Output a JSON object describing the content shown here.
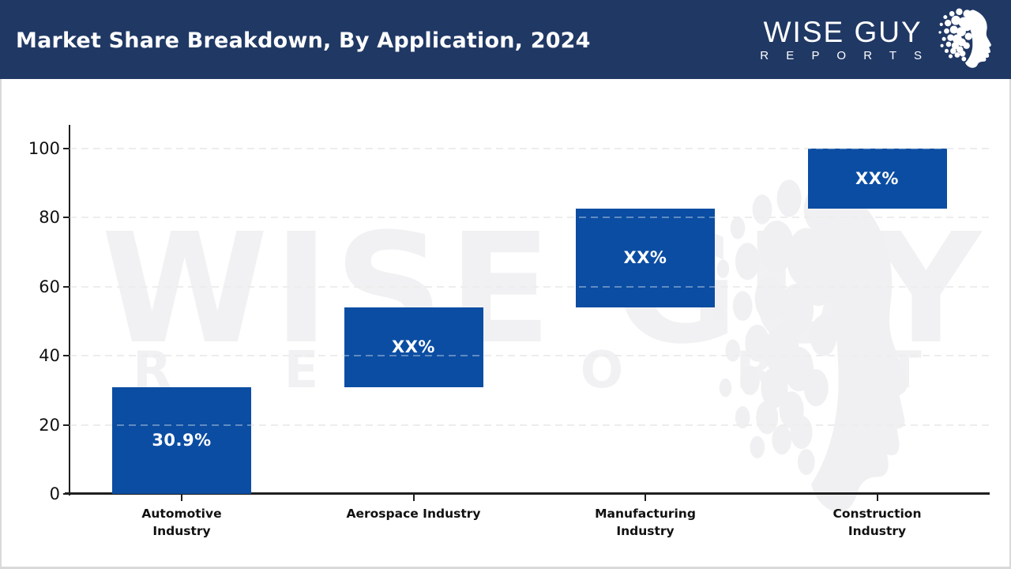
{
  "header": {
    "title": "Market Share Breakdown, By Application, 2024",
    "bg_color": "#203864",
    "logo": {
      "line1": "WISE GUY",
      "line2": "R E P O R T S"
    }
  },
  "watermark": {
    "line1": "WISE GUY",
    "line2": "R E P O R T S"
  },
  "chart_data": {
    "type": "bar",
    "subtype": "waterfall",
    "title": "Market Share Breakdown, By Application, 2024",
    "categories": [
      "Automotive Industry",
      "Aerospace Industry",
      "Manufacturing Industry",
      "Construction Industry"
    ],
    "segments": [
      {
        "category": "Automotive Industry",
        "label_lines": [
          "Automotive",
          "Industry"
        ],
        "start": 0,
        "end": 30.9,
        "value": 30.9,
        "bar_label": "30.9%"
      },
      {
        "category": "Aerospace Industry",
        "label_lines": [
          "Aerospace Industry"
        ],
        "start": 30.9,
        "end": 54.0,
        "value": 23.1,
        "bar_label": "XX%"
      },
      {
        "category": "Manufacturing Industry",
        "label_lines": [
          "Manufacturing",
          "Industry"
        ],
        "start": 54.0,
        "end": 82.5,
        "value": 28.5,
        "bar_label": "XX%"
      },
      {
        "category": "Construction Industry",
        "label_lines": [
          "Construction",
          "Industry"
        ],
        "start": 82.5,
        "end": 100,
        "value": 17.5,
        "bar_label": "XX%"
      }
    ],
    "y_ticks": [
      0,
      20,
      40,
      60,
      80,
      100
    ],
    "ylim": [
      0,
      105
    ],
    "xlabel": "",
    "ylabel": "",
    "grid": "horizontal-dashed",
    "legend": "none",
    "bar_color": "#0b4da2",
    "bar_label_color": "#ffffff",
    "axis_color": "#1f1f1f",
    "gridline_color": "#e4e4e4"
  }
}
